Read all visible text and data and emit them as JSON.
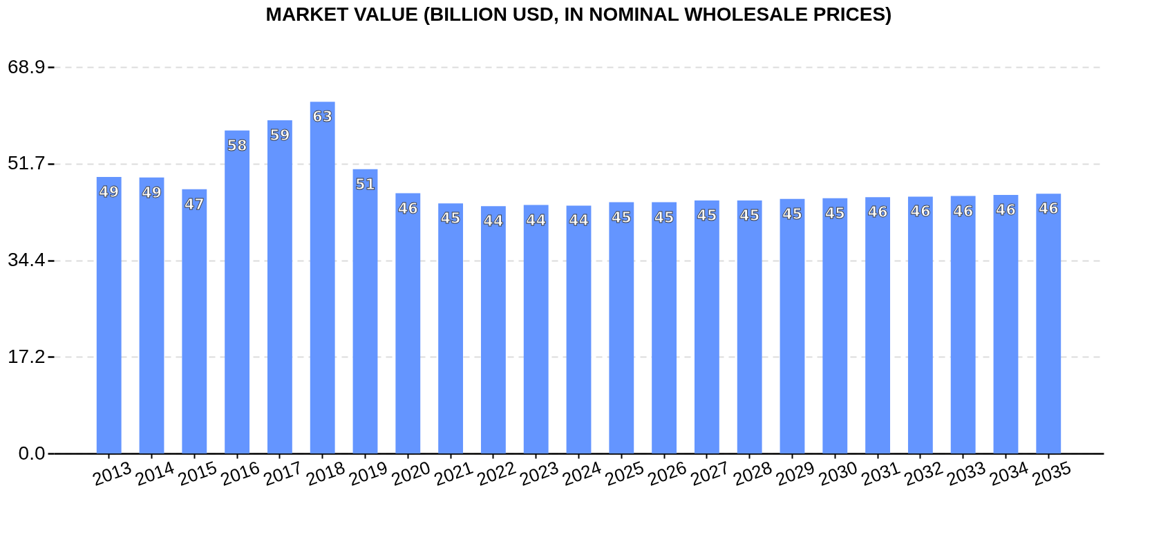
{
  "chart_data": {
    "type": "bar",
    "title": "MARKET VALUE (BILLION USD, IN NOMINAL WHOLESALE PRICES)",
    "categories": [
      "2013",
      "2014",
      "2015",
      "2016",
      "2017",
      "2018",
      "2019",
      "2020",
      "2021",
      "2022",
      "2023",
      "2024",
      "2025",
      "2026",
      "2027",
      "2028",
      "2029",
      "2030",
      "2031",
      "2032",
      "2033",
      "2034",
      "2035"
    ],
    "values": [
      49.3,
      49.2,
      47.1,
      57.6,
      59.4,
      62.7,
      50.7,
      46.4,
      44.6,
      44.1,
      44.3,
      44.2,
      44.8,
      44.8,
      45.1,
      45.1,
      45.4,
      45.5,
      45.7,
      45.8,
      45.9,
      46.1,
      46.3
    ],
    "value_labels": [
      "49",
      "49",
      "47",
      "58",
      "59",
      "63",
      "51",
      "46",
      "45",
      "44",
      "44",
      "44",
      "45",
      "45",
      "45",
      "45",
      "45",
      "45",
      "46",
      "46",
      "46",
      "46",
      "46"
    ],
    "color": "#6495ff",
    "ylim": [
      0,
      68.9
    ],
    "yticks": [
      {
        "value": 0,
        "label": "0.0"
      },
      17.2,
      34.4,
      51.7,
      68.9
    ],
    "grid": "y"
  }
}
